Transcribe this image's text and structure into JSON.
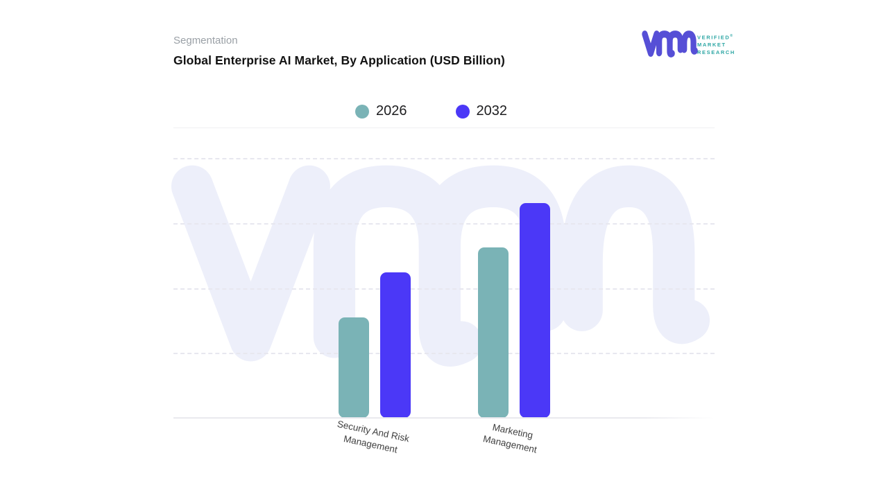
{
  "header": {
    "eyebrow": "Segmentation",
    "title": "Global Enterprise AI Market, By Application (USD Billion)"
  },
  "logo": {
    "lines": [
      "VERIFIED",
      "MARKET",
      "RESEARCH"
    ],
    "registered_mark": "®",
    "glyph_color": "#564fd6",
    "text_color": "#2fa7a5"
  },
  "legend": {
    "items": [
      {
        "label": "2026",
        "color": "#7ab3b6"
      },
      {
        "label": "2032",
        "color": "#4b38f7"
      }
    ]
  },
  "chart_data": {
    "type": "bar",
    "title": "Global Enterprise AI Market, By Application (USD Billion)",
    "unit": "USD Billion",
    "categories": [
      "Security And Risk Management",
      "Marketing Management"
    ],
    "category_label_lines": [
      [
        "Security And Risk",
        "Management"
      ],
      [
        "Marketing",
        "Management"
      ]
    ],
    "series": [
      {
        "name": "2026",
        "color": "#7ab3b6",
        "values": [
          38.7,
          65.6
        ]
      },
      {
        "name": "2032",
        "color": "#4b38f7",
        "values": [
          56.0,
          82.7
        ]
      }
    ],
    "xlabel": "",
    "ylabel": "",
    "ylim": [
      0,
      100
    ],
    "y_axis_tick_labels": [],
    "grid": "horizontal-dashed",
    "legend_position": "top-center"
  },
  "colors": {
    "bar_2026": "#7ab3b6",
    "bar_2032": "#4b38f7",
    "watermark": "#edeffa",
    "gridline": "#e7e7ef",
    "separator": "#efeff2",
    "eyebrow_text": "#9aa0a6",
    "title_text": "#121212",
    "axis_label_text": "#3f3f3f"
  }
}
